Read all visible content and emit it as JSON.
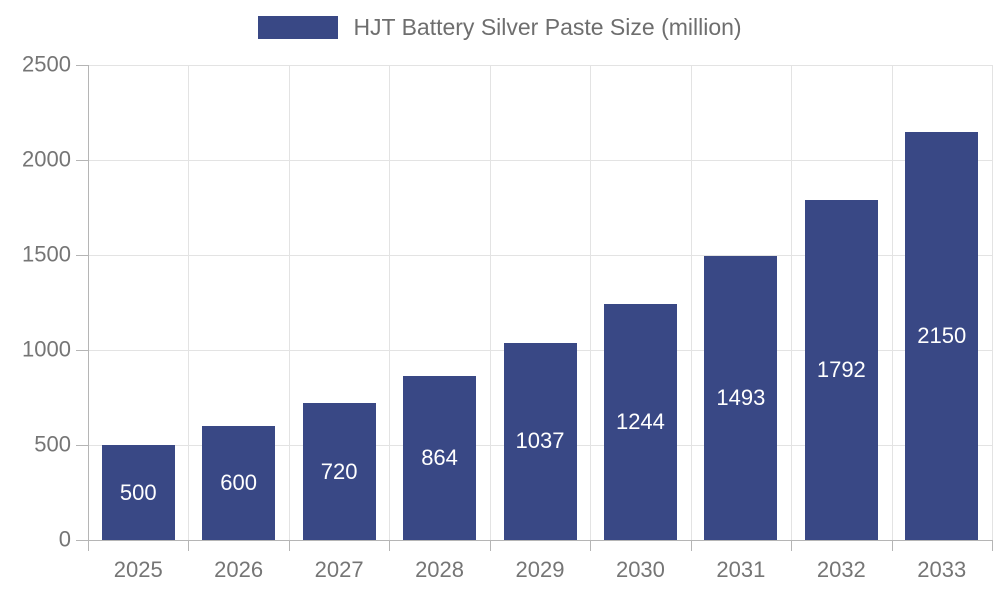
{
  "chart": {
    "legend": {
      "label": "HJT Battery Silver Paste Size (million)"
    },
    "colors": {
      "bar": "#394885",
      "grid": "#e3e3e3",
      "axis": "#b5b5b5",
      "axis_label": "#757575",
      "title": "#6e6e6e",
      "value_label": "#ffffff",
      "background": "#ffffff"
    }
  },
  "chart_data": {
    "type": "bar",
    "categories": [
      "2025",
      "2026",
      "2027",
      "2028",
      "2029",
      "2030",
      "2031",
      "2032",
      "2033"
    ],
    "values": [
      500,
      600,
      720,
      864,
      1037,
      1244,
      1493,
      1792,
      2150
    ],
    "title": "HJT Battery Silver Paste Size (million)",
    "xlabel": "",
    "ylabel": "",
    "ylim": [
      0,
      2500
    ],
    "yticks": [
      0,
      500,
      1000,
      1500,
      2000,
      2500
    ],
    "grid": true,
    "legend_position": "top",
    "value_labels": "inside-center-white"
  }
}
